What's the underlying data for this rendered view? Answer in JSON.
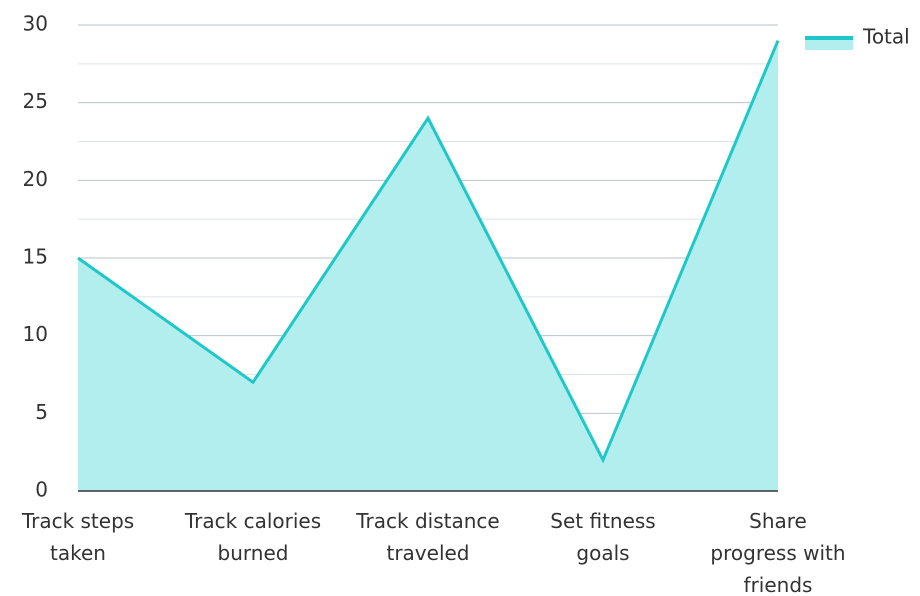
{
  "chart_data": {
    "type": "area",
    "categories": [
      "Track steps taken",
      "Track calories burned",
      "Track distance traveled",
      "Set fitness goals",
      "Share progress with friends"
    ],
    "series": [
      {
        "name": "Total",
        "color": "#1ec8c8",
        "fill": "#b3eeee",
        "values": [
          15,
          7,
          24,
          2,
          29
        ]
      }
    ],
    "ylim": [
      0,
      30
    ],
    "yticks": [
      0,
      5,
      10,
      15,
      20,
      25,
      30
    ],
    "grid": true,
    "minor_grid": true,
    "legend": "top-right"
  }
}
